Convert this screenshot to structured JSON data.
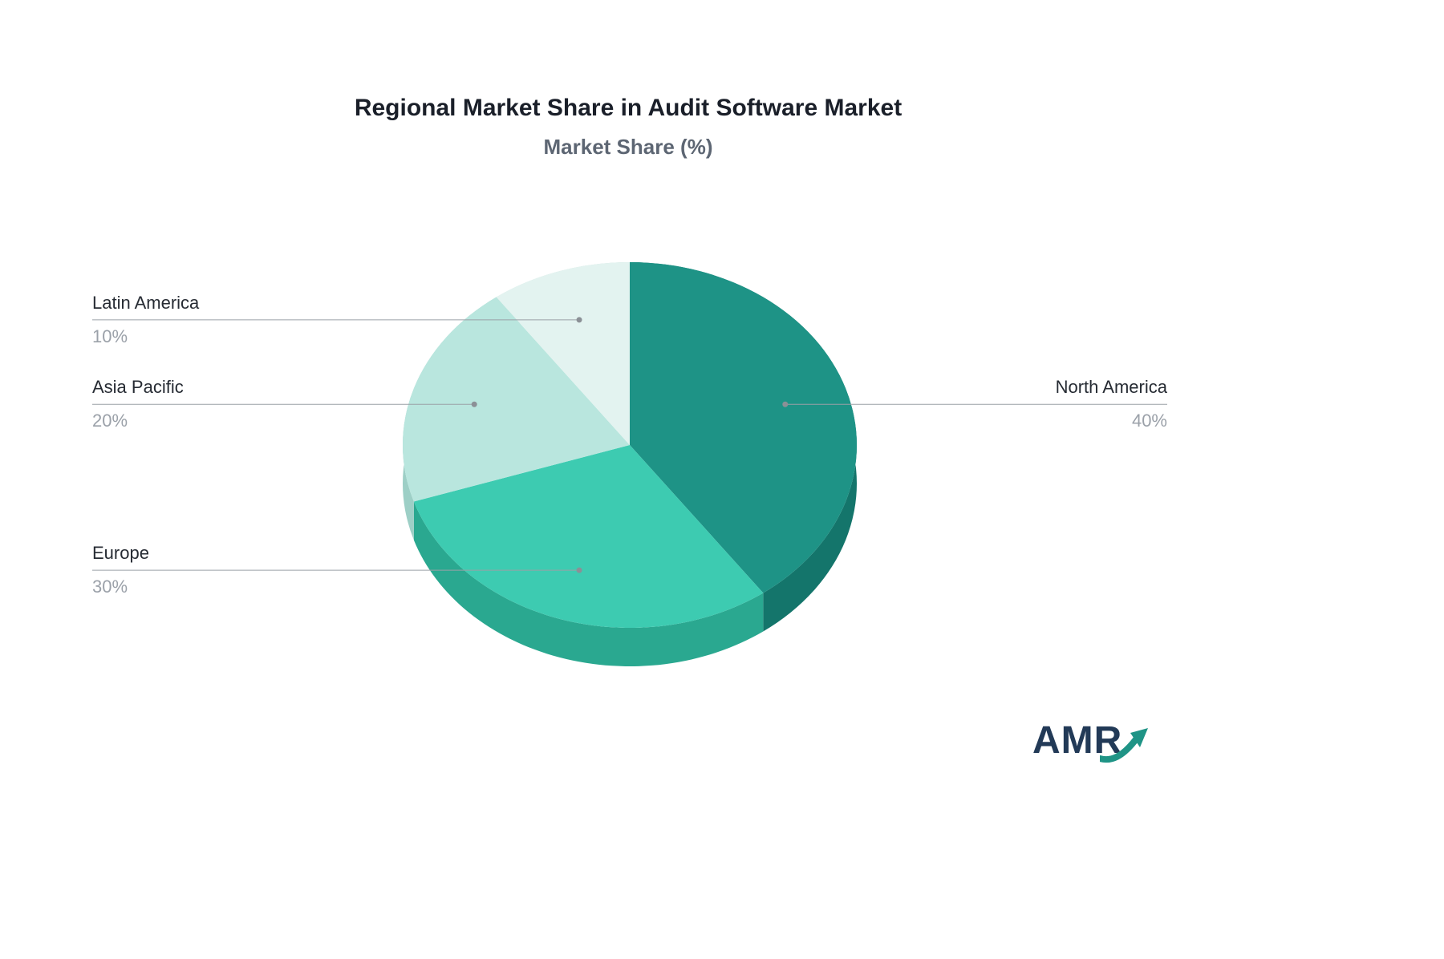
{
  "chart_data": {
    "type": "pie",
    "title": "Regional Market Share in Audit Software Market",
    "subtitle": "Market Share (%)",
    "unit": "%",
    "effect": "3d",
    "legend_position": "none",
    "label_style": "leader-lines",
    "labels": [
      "North America",
      "Europe",
      "Asia Pacific",
      "Latin America"
    ],
    "values": [
      40,
      30,
      20,
      10
    ],
    "value_labels": [
      "40%",
      "30%",
      "20%",
      "10%"
    ],
    "colors": [
      "#1e9386",
      "#3dcbb1",
      "#b9e6de",
      "#e3f3f0"
    ],
    "side_colors": [
      "#14756b",
      "#2aa890",
      "#9dcfc6",
      "#c6ddd8"
    ],
    "leader_line_color": "#9aa0a6",
    "leader_dot_color": "#8b9096"
  },
  "branding": {
    "logo_text": "AMR",
    "logo_color": "#223a57",
    "arrow_color": "#1f9486"
  }
}
